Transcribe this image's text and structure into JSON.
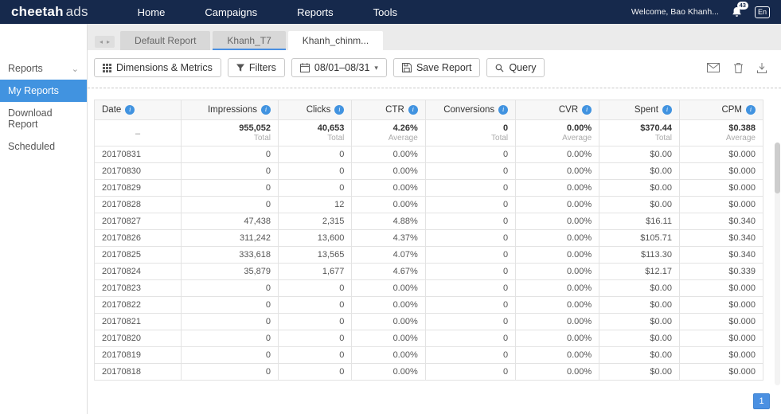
{
  "topbar": {
    "logo_bold": "cheetah",
    "logo_light": "ads",
    "nav": [
      {
        "label": "Home"
      },
      {
        "label": "Campaigns"
      },
      {
        "label": "Reports"
      },
      {
        "label": "Tools"
      }
    ],
    "welcome_label": "Welcome,",
    "username": "Bao Khanh...",
    "notification_count": "43",
    "language": "En"
  },
  "sidebar": {
    "section": "Reports",
    "items": [
      {
        "label": "My Reports",
        "active": true
      },
      {
        "label": "Download Report",
        "active": false
      },
      {
        "label": "Scheduled",
        "active": false
      }
    ]
  },
  "tabs": [
    {
      "label": "Default Report",
      "active": false
    },
    {
      "label": "Khanh_T7",
      "active": false
    },
    {
      "label": "Khanh_chinm...",
      "active": true
    }
  ],
  "toolbar": {
    "dimensions_metrics": "Dimensions & Metrics",
    "filters": "Filters",
    "date_range": "08/01–08/31",
    "save_report": "Save Report",
    "query": "Query"
  },
  "glyphs": {
    "arrow_left": "◂",
    "arrow_right": "▸",
    "chevron_down": "⌄",
    "caret_down": "▾",
    "info": "i"
  },
  "icons": {
    "toolbar_left": [
      "grid-icon",
      "funnel-icon",
      "calendar-icon",
      "save-icon",
      "search-icon"
    ],
    "toolbar_right": [
      "envelope-icon",
      "trash-icon",
      "download-icon"
    ],
    "topbar_right": [
      "bell-icon",
      "language-icon"
    ]
  },
  "table": {
    "columns": [
      "Date",
      "Impressions",
      "Clicks",
      "CTR",
      "Conversions",
      "CVR",
      "Spent",
      "CPM"
    ],
    "total": {
      "date": "–",
      "metrics": [
        {
          "value": "955,052",
          "sub": "Total"
        },
        {
          "value": "40,653",
          "sub": "Total"
        },
        {
          "value": "4.26%",
          "sub": "Average"
        },
        {
          "value": "0",
          "sub": "Total"
        },
        {
          "value": "0.00%",
          "sub": "Average"
        },
        {
          "value": "$370.44",
          "sub": "Total"
        },
        {
          "value": "$0.388",
          "sub": "Average"
        }
      ]
    },
    "rows": [
      [
        "20170831",
        "0",
        "0",
        "0.00%",
        "0",
        "0.00%",
        "$0.00",
        "$0.000"
      ],
      [
        "20170830",
        "0",
        "0",
        "0.00%",
        "0",
        "0.00%",
        "$0.00",
        "$0.000"
      ],
      [
        "20170829",
        "0",
        "0",
        "0.00%",
        "0",
        "0.00%",
        "$0.00",
        "$0.000"
      ],
      [
        "20170828",
        "0",
        "12",
        "0.00%",
        "0",
        "0.00%",
        "$0.00",
        "$0.000"
      ],
      [
        "20170827",
        "47,438",
        "2,315",
        "4.88%",
        "0",
        "0.00%",
        "$16.11",
        "$0.340"
      ],
      [
        "20170826",
        "311,242",
        "13,600",
        "4.37%",
        "0",
        "0.00%",
        "$105.71",
        "$0.340"
      ],
      [
        "20170825",
        "333,618",
        "13,565",
        "4.07%",
        "0",
        "0.00%",
        "$113.30",
        "$0.340"
      ],
      [
        "20170824",
        "35,879",
        "1,677",
        "4.67%",
        "0",
        "0.00%",
        "$12.17",
        "$0.339"
      ],
      [
        "20170823",
        "0",
        "0",
        "0.00%",
        "0",
        "0.00%",
        "$0.00",
        "$0.000"
      ],
      [
        "20170822",
        "0",
        "0",
        "0.00%",
        "0",
        "0.00%",
        "$0.00",
        "$0.000"
      ],
      [
        "20170821",
        "0",
        "0",
        "0.00%",
        "0",
        "0.00%",
        "$0.00",
        "$0.000"
      ],
      [
        "20170820",
        "0",
        "0",
        "0.00%",
        "0",
        "0.00%",
        "$0.00",
        "$0.000"
      ],
      [
        "20170819",
        "0",
        "0",
        "0.00%",
        "0",
        "0.00%",
        "$0.00",
        "$0.000"
      ],
      [
        "20170818",
        "0",
        "0",
        "0.00%",
        "0",
        "0.00%",
        "$0.00",
        "$0.000"
      ]
    ]
  },
  "pagination": {
    "page": "1"
  }
}
